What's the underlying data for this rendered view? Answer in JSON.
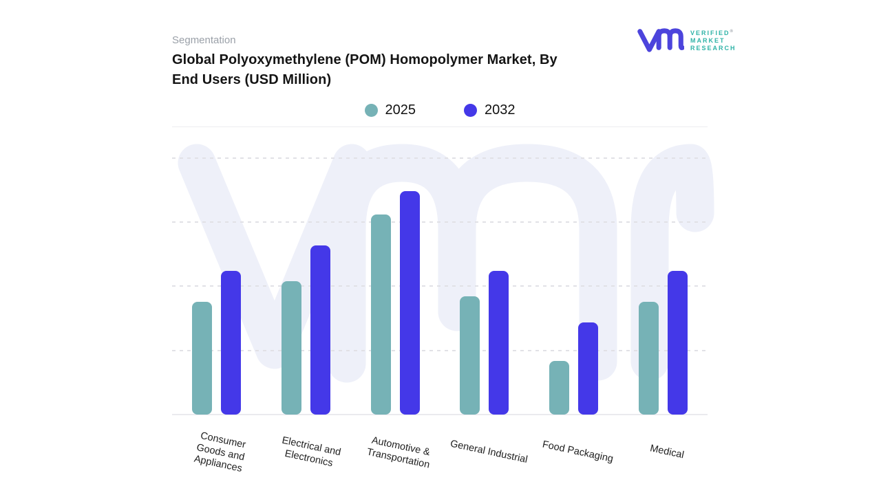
{
  "header": {
    "eyebrow": "Segmentation",
    "title": "Global Polyoxymethylene (POM) Homopolymer Market, By\nEnd Users (USD Million)"
  },
  "logo": {
    "brand_lines": [
      "VERIFIED",
      "MARKET",
      "RESEARCH"
    ],
    "registered_mark": "®",
    "mark_color": "#4c44dc",
    "text_color": "#2fb3a7"
  },
  "colors": {
    "series_2025": "#76b2b6",
    "series_2032": "#4438e8",
    "watermark": "#eef0f9"
  },
  "chart_data": {
    "type": "bar",
    "title": "Global Polyoxymethylene (POM) Homopolymer Market, By End Users (USD Million)",
    "xlabel": "",
    "ylabel": "",
    "ylim": [
      0,
      100
    ],
    "y_axis_labels_visible": false,
    "grid": "horizontal-dashed",
    "legend_position": "top-center",
    "value_note": "relative units estimated from bar heights; no numeric axis shown",
    "categories": [
      {
        "label": "Consumer Goods and Appliances",
        "display_lines": [
          "Consumer",
          "Goods and",
          "Appliances"
        ]
      },
      {
        "label": "Electrical and Electronics",
        "display_lines": [
          "Electrical and",
          "Electronics"
        ]
      },
      {
        "label": "Automotive & Transportation",
        "display_lines": [
          "Automotive &",
          "Transportation"
        ]
      },
      {
        "label": "General Industrial",
        "display_lines": [
          "General Industrial"
        ]
      },
      {
        "label": "Food Packaging",
        "display_lines": [
          "Food Packaging"
        ]
      },
      {
        "label": "Medical",
        "display_lines": [
          "Medical"
        ]
      }
    ],
    "series": [
      {
        "name": "2025",
        "color": "#76b2b6",
        "values": [
          44,
          52,
          78,
          46,
          21,
          44
        ]
      },
      {
        "name": "2032",
        "color": "#4438e8",
        "values": [
          56,
          66,
          87,
          56,
          36,
          56
        ]
      }
    ]
  }
}
